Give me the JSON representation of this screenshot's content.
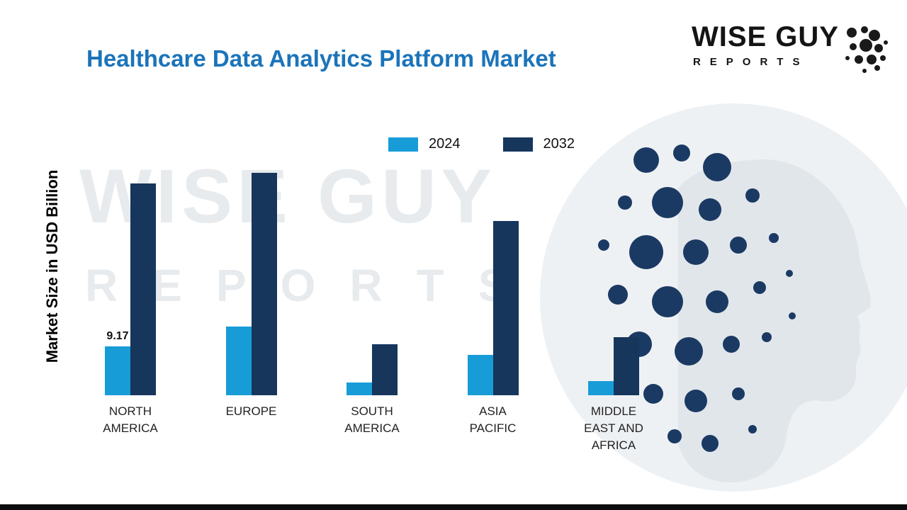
{
  "header": {
    "title": "Healthcare Data Analytics Platform Market",
    "logo": {
      "line1": "WISE GUY",
      "line2": "REPORTS"
    }
  },
  "watermark": {
    "line1": "WISE GUY",
    "line2": "REPORTS"
  },
  "chart_data": {
    "type": "bar",
    "title": "Healthcare Data Analytics Platform Market",
    "xlabel": "",
    "ylabel": "Market Size in USD Billion",
    "categories": [
      "NORTH AMERICA",
      "EUROPE",
      "SOUTH AMERICA",
      "ASIA PACIFIC",
      "MIDDLE EAST AND AFRICA"
    ],
    "series": [
      {
        "name": "2024",
        "color": "#189cd8",
        "values": [
          9.17,
          12.8,
          2.4,
          7.5,
          2.6
        ],
        "labels": [
          "9.17",
          "",
          "",
          "",
          ""
        ]
      },
      {
        "name": "2032",
        "color": "#16365c",
        "values": [
          39.5,
          41.5,
          9.5,
          32.5,
          10.8
        ],
        "labels": [
          "",
          "",
          "",
          "",
          ""
        ]
      }
    ],
    "ylim": [
      0,
      42
    ],
    "grid": false,
    "legend_position": "top",
    "data_label_note": "Only the 2024 North America bar shows an explicit value label (9.17); other values estimated from bar heights."
  },
  "colors": {
    "title_blue": "#1b74ba",
    "bar_2024": "#189cd8",
    "bar_2032": "#16365c",
    "watermark_gray": "#e8ebee",
    "circle_gray": "#eef1f4",
    "footer_black": "#0d0d0d"
  }
}
